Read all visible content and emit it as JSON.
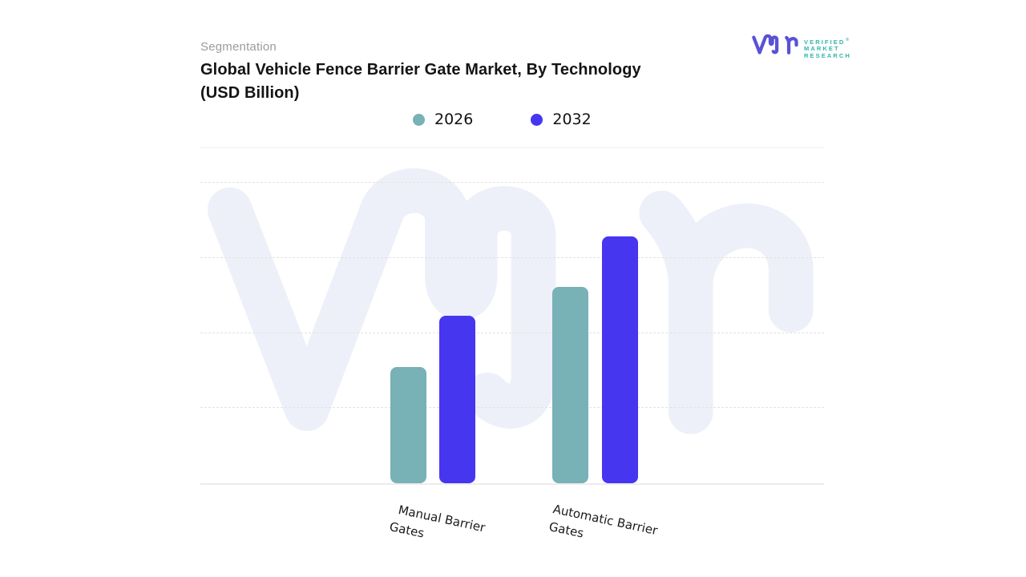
{
  "header": {
    "eyebrow": "Segmentation",
    "title_line1": "Global Vehicle Fence Barrier Gate Market, By Technology",
    "title_line2": "(USD Billion)"
  },
  "brand": {
    "name": "Verified Market Research",
    "lines": [
      "VERIFIED",
      "MARKET",
      "RESEARCH"
    ],
    "registered": "®",
    "monogram_color": "#5a52d5",
    "text_color": "#2eb6ae"
  },
  "legend": [
    {
      "label": "2026",
      "color": "#78b1b6"
    },
    {
      "label": "2032",
      "color": "#4636f0"
    }
  ],
  "chart_data": {
    "type": "bar",
    "title": "Global Vehicle Fence Barrier Gate Market, By Technology (USD Billion)",
    "categories": [
      "Manual Barrier Gates",
      "Automatic Barrier Gates"
    ],
    "category_lines": [
      {
        "line1": "Manual Barrier",
        "line2": "Gates"
      },
      {
        "line1": "Automatic Barrier",
        "line2": "Gates"
      }
    ],
    "series": [
      {
        "name": "2026",
        "color": "#78b1b6",
        "values": [
          1.55,
          2.62
        ]
      },
      {
        "name": "2032",
        "color": "#4636f0",
        "values": [
          2.23,
          3.29
        ]
      }
    ],
    "ylabel": "",
    "xlabel": "",
    "ylim": [
      0,
      4
    ],
    "y_axis_labels_visible": false,
    "grid": "horizontal-dashed",
    "gridline_interval": 1,
    "legend_position": "top-center",
    "watermark": "vmr-monogram",
    "bar_corner_radius": 8
  }
}
